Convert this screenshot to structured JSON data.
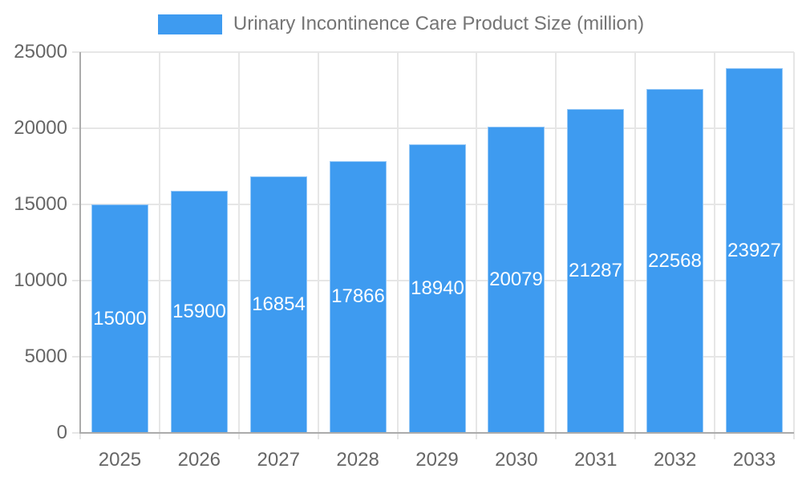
{
  "chart_data": {
    "type": "bar",
    "title": "Urinary Incontinence Care Product Size (million)",
    "legend": {
      "label": "Urinary Incontinence Care Product Size (million)",
      "position": "top"
    },
    "categories": [
      "2025",
      "2026",
      "2027",
      "2028",
      "2029",
      "2030",
      "2031",
      "2032",
      "2033"
    ],
    "values": [
      15000,
      15900,
      16854,
      17866,
      18940,
      20079,
      21287,
      22568,
      23927
    ],
    "xlabel": "",
    "ylabel": "",
    "ylim": [
      0,
      25000
    ],
    "y_ticks": [
      0,
      5000,
      10000,
      15000,
      20000,
      25000
    ],
    "grid": true,
    "show_value_labels": true,
    "colors": {
      "bar_fill": "#3E9BF0",
      "bar_value_text": "#FFFFFF",
      "axis_text": "#666666",
      "legend_text": "#757575",
      "grid_line": "#E6E6E6",
      "axis_line": "#ABABAB",
      "background": "#FFFFFF"
    }
  }
}
